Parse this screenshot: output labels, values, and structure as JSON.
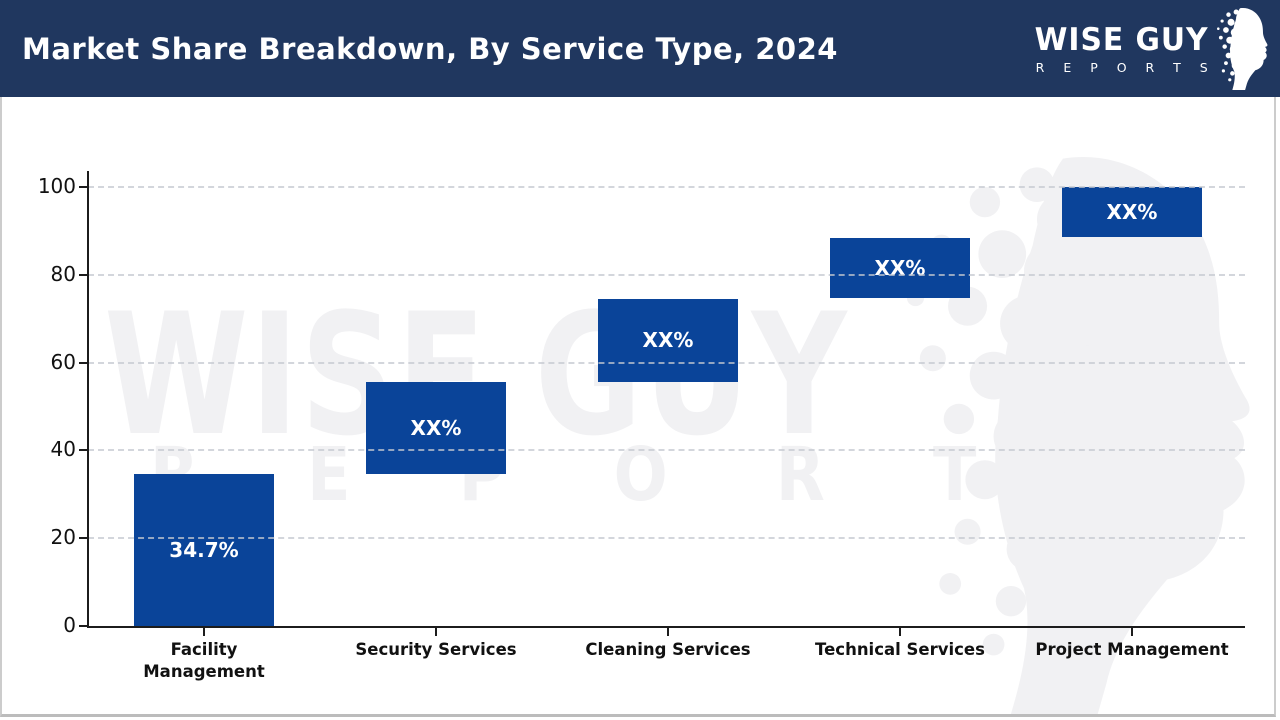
{
  "header": {
    "title": "Market Share Breakdown, By Service Type, 2024",
    "bg_color": "#20375f",
    "logo": {
      "name_top": "WISE GUY",
      "name_bottom": "R E P O R T S"
    }
  },
  "watermark": {
    "line1": "WISE GUY",
    "line2": "R E P O R T S"
  },
  "chart_data": {
    "type": "bar",
    "variant": "waterfall",
    "title": "Market Share Breakdown, By Service Type, 2024",
    "xlabel": "",
    "ylabel": "",
    "ylim": [
      0,
      100
    ],
    "yticks": [
      0,
      20,
      40,
      60,
      80,
      100
    ],
    "grid": {
      "horizontal": true,
      "style": "dashed",
      "color": "#d7dade"
    },
    "bar_color": "#0a4499",
    "bar_label_color": "#ffffff",
    "axis_color": "#1c1c1c",
    "categories": [
      "Facility\nManagement",
      "Security Services",
      "Cleaning Services",
      "Technical Services",
      "Project Management"
    ],
    "segments": [
      {
        "category": "Facility Management",
        "start": 0,
        "end": 34.7,
        "label": "34.7%"
      },
      {
        "category": "Security Services",
        "start": 34.7,
        "end": 55.5,
        "label": "XX%"
      },
      {
        "category": "Cleaning Services",
        "start": 55.6,
        "end": 74.6,
        "label": "XX%"
      },
      {
        "category": "Technical Services",
        "start": 74.7,
        "end": 88.4,
        "label": "XX%"
      },
      {
        "category": "Project Management",
        "start": 88.5,
        "end": 100,
        "label": "XX%"
      }
    ]
  }
}
